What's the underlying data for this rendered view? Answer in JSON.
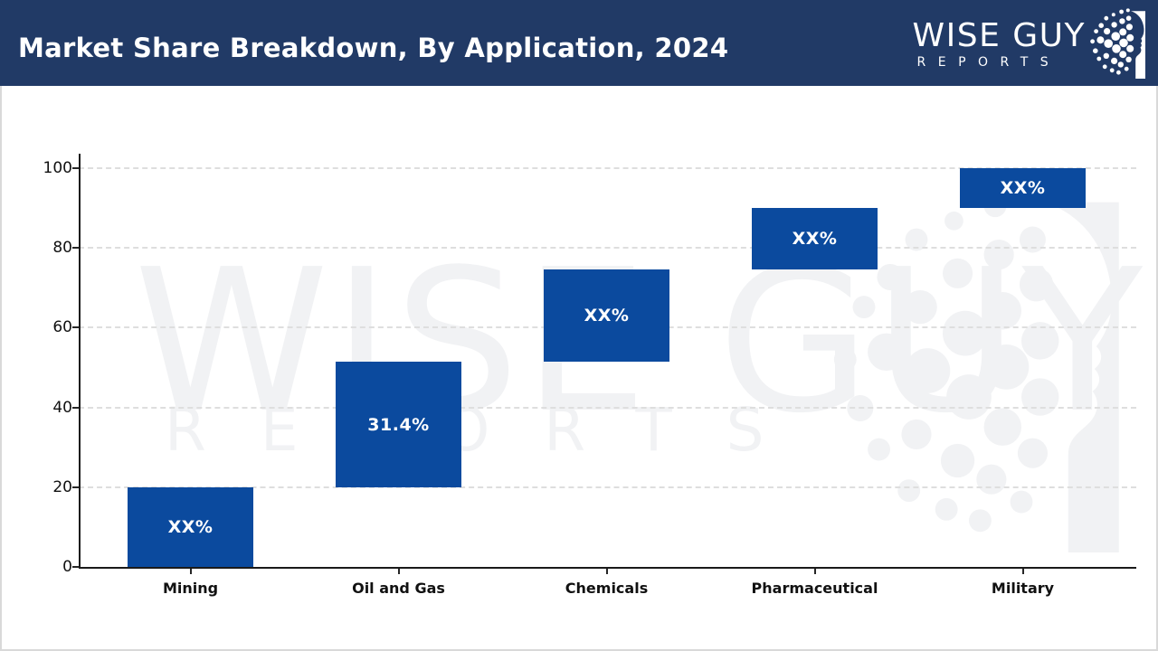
{
  "header": {
    "title": "Market Share Breakdown, By Application, 2024",
    "logo": {
      "primary": "WISE GUY",
      "secondary": "REPORTS"
    }
  },
  "watermark": {
    "primary": "WISE GUY",
    "secondary": "REPORTS"
  },
  "chart_data": {
    "type": "bar",
    "variant": "waterfall",
    "title": "Market Share Breakdown, By Application, 2024",
    "categories": [
      "Mining",
      "Oil and Gas",
      "Chemicals",
      "Pharmaceutical",
      "Military"
    ],
    "segments": [
      {
        "category": "Mining",
        "start": 0,
        "end": 20,
        "label": "XX%"
      },
      {
        "category": "Oil and Gas",
        "start": 20,
        "end": 51.4,
        "label": "31.4%"
      },
      {
        "category": "Chemicals",
        "start": 51.4,
        "end": 74.6,
        "label": "XX%"
      },
      {
        "category": "Pharmaceutical",
        "start": 74.6,
        "end": 90,
        "label": "XX%"
      },
      {
        "category": "Military",
        "start": 90,
        "end": 100,
        "label": "XX%"
      }
    ],
    "yticks": [
      0,
      20,
      40,
      60,
      80,
      100
    ],
    "ylim": [
      0,
      103.6
    ],
    "xlabel": "",
    "ylabel": "",
    "grid": "horizontal-dashed",
    "legend": "none",
    "bar_color": "#0B4A9E",
    "bar_label_color": "#FFFFFF",
    "header_color": "#213A66",
    "watermark_color": "#F1F2F4"
  }
}
